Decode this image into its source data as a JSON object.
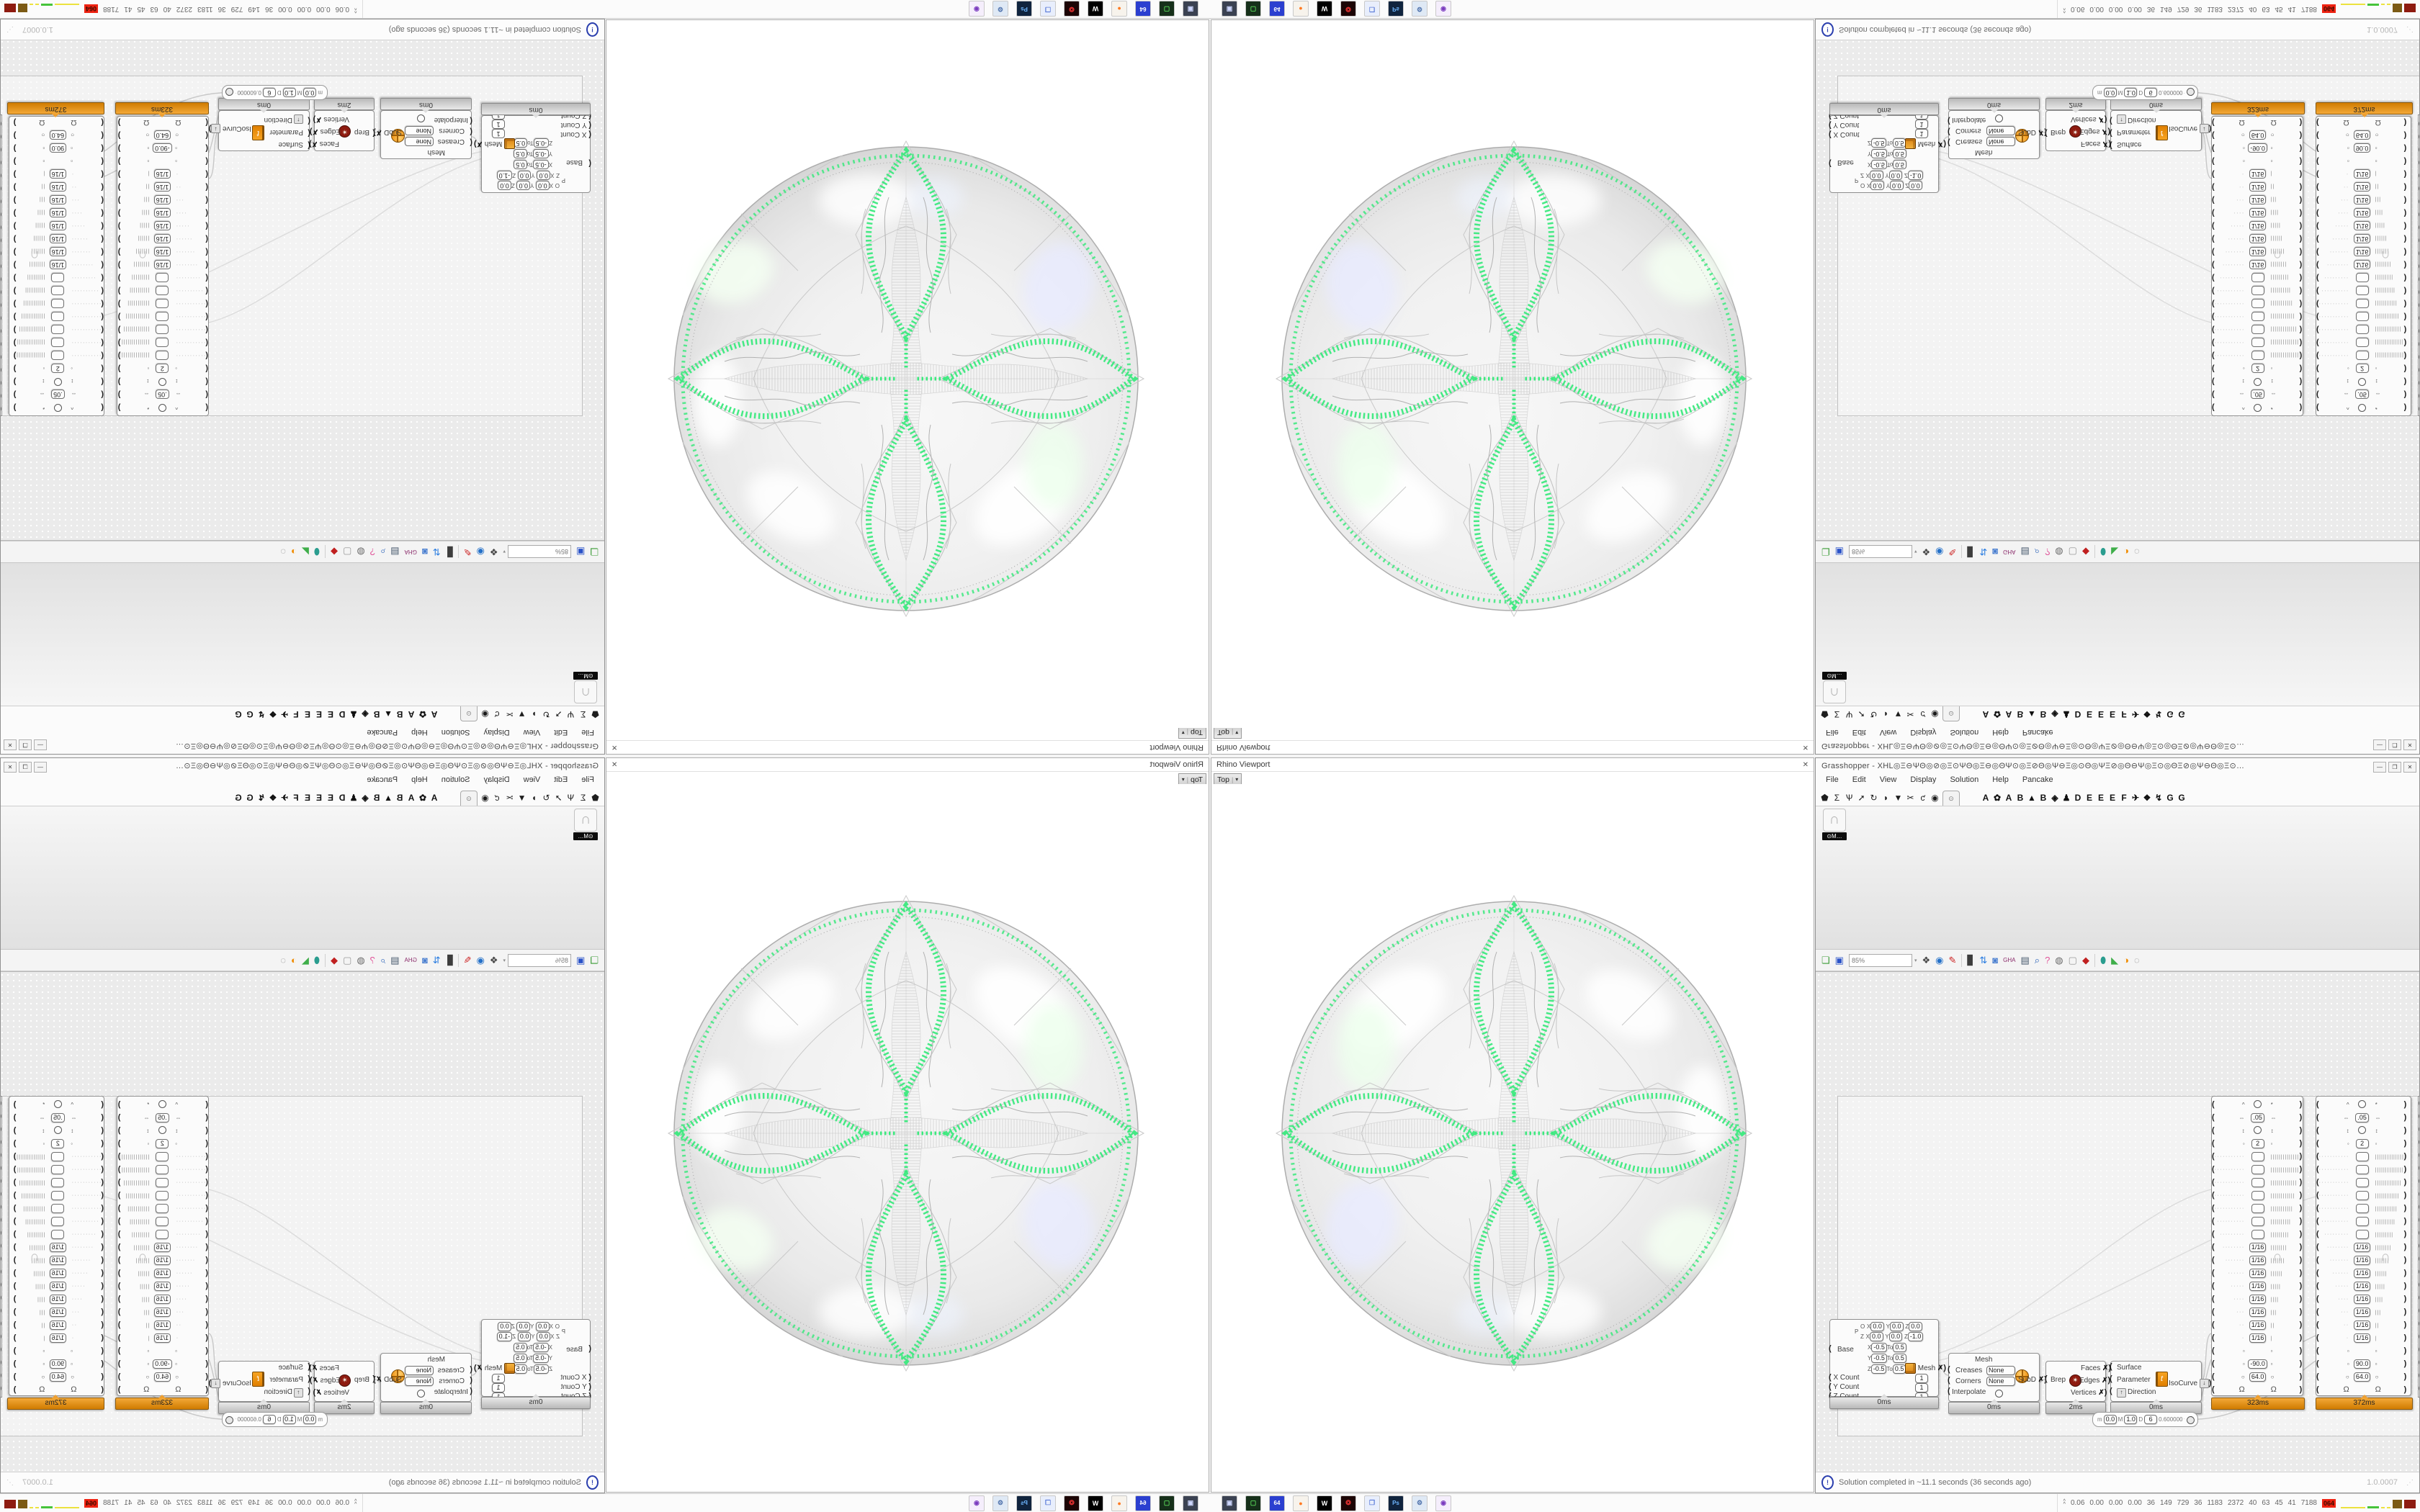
{
  "colors": {
    "green": "#3ce97e",
    "orange_bar": "#e89117",
    "canvas_bg": "#ebebeb"
  },
  "taskbar": {
    "apps": [
      {
        "name": "screenshot-tool",
        "glyph": "▣",
        "bg": "#3b4252",
        "fg": "#cfd8ff"
      },
      {
        "name": "screen-recorder",
        "glyph": "▢",
        "bg": "#16301a",
        "fg": "#58d858"
      },
      {
        "name": "floppy-64",
        "glyph": "64",
        "bg": "#2b3fd0",
        "fg": "#ffffff"
      },
      {
        "name": "firefox",
        "glyph": "●",
        "bg": "#f7f3ec",
        "fg": "#ff7a21"
      },
      {
        "name": "wolf-app",
        "glyph": "W",
        "bg": "#000000",
        "fg": "#ffffff"
      },
      {
        "name": "red-camera",
        "glyph": "❂",
        "bg": "#1c0505",
        "fg": "#e23030"
      },
      {
        "name": "file-manager",
        "glyph": "❐",
        "bg": "#e8eefc",
        "fg": "#5b7bd8"
      },
      {
        "name": "photoshop",
        "glyph": "Ps",
        "bg": "#10243e",
        "fg": "#6fb7ff"
      },
      {
        "name": "system-monitor",
        "glyph": "⚙",
        "bg": "#dfe9f5",
        "fg": "#4a6ea9"
      },
      {
        "name": "owl-app",
        "glyph": "◉",
        "bg": "#f5eefc",
        "fg": "#7a3bbf"
      }
    ],
    "tray": {
      "chevrons": [
        "^",
        "^"
      ],
      "values": [
        "0.06",
        "0.00",
        "0.00",
        "0.00",
        "36",
        "149",
        "729",
        "36",
        "1183",
        "2372",
        "40",
        "63",
        "45",
        "41",
        "7188"
      ],
      "badge": "064",
      "blocks": [
        {
          "name": "yellow-line",
          "color": "#ece23e",
          "w": 34,
          "h": 2
        },
        {
          "name": "green-line",
          "color": "#46c43a",
          "w": 16,
          "h": 3
        },
        {
          "name": "yellow-dot",
          "color": "#ece23e",
          "w": 5,
          "h": 2
        },
        {
          "name": "yellow-dot",
          "color": "#ece23e",
          "w": 5,
          "h": 2
        },
        {
          "name": "brown-block",
          "color": "#7c5a14",
          "w": 13,
          "h": 12
        },
        {
          "name": "darkred-block",
          "color": "#8e1b10",
          "w": 16,
          "h": 12
        }
      ]
    }
  },
  "rhino": {
    "window_title": "Rhino Viewport",
    "close_glyph": "✕",
    "viewport_tab": "Top",
    "tab_sep": "|",
    "tab_caret": "▾"
  },
  "grasshopper": {
    "title": "Grasshopper - XHL◎Ξ⊖ΨΘ◎⊘◎Ξ⊙ΨΘ◎Ξ⊖◎ΘΨ⊙◎Ξ⊘Θ◎Ψ⊖Ξ◎⊙Θ◎ΨΞ⊘◎Θ⊖Ψ◎Ξ⊙◎ΘΞ⊘◎Ψ⊖Θ◎Ξ⊙…",
    "window_buttons": [
      {
        "name": "minimize",
        "glyph": "—"
      },
      {
        "name": "maximize",
        "glyph": "❐"
      },
      {
        "name": "close",
        "glyph": "✕"
      }
    ],
    "menu": [
      "File",
      "Edit",
      "View",
      "Display",
      "Solution",
      "Help",
      "Pancake"
    ],
    "category_tabs": [
      {
        "name": "params",
        "glyph": "⬟"
      },
      {
        "name": "maths",
        "glyph": "Σ"
      },
      {
        "name": "sets",
        "glyph": "Ѱ"
      },
      {
        "name": "vector",
        "glyph": "➚"
      },
      {
        "name": "curve",
        "glyph": "↻"
      },
      {
        "name": "surface",
        "glyph": "◗"
      },
      {
        "name": "mesh",
        "glyph": "▼"
      },
      {
        "name": "intersect",
        "glyph": "✂"
      },
      {
        "name": "transform",
        "glyph": "ƈ"
      },
      {
        "name": "display",
        "glyph": "◉"
      }
    ],
    "selected_tab_glyph": "⊙",
    "letter_tabs": [
      "A",
      "✿",
      "A",
      "B",
      "▲",
      "B",
      "◈",
      "♟",
      "D",
      "E",
      "E",
      "E",
      "F",
      "✈",
      "❖",
      "↯",
      "G",
      "G"
    ],
    "panel_component": {
      "icon_glyph": "∩",
      "label": "⊙M…"
    },
    "toolbar": {
      "zoom_value": "85%",
      "icons": [
        {
          "name": "open-file-icon",
          "glyph": "❏",
          "color": "#3a9b35"
        },
        {
          "name": "save-file-icon",
          "glyph": "▣",
          "color": "#2a52c8"
        },
        {
          "name": "zoom-extents-icon",
          "glyph": "❖",
          "color": "#444444"
        },
        {
          "name": "preview-eye-icon",
          "glyph": "◉",
          "color": "#2470c8"
        },
        {
          "name": "sketch-pen-icon",
          "glyph": "✎",
          "color": "#cc2222"
        },
        {
          "name": "separator",
          "glyph": "",
          "color": ""
        },
        {
          "name": "camera-icon",
          "glyph": "▊",
          "color": "#3d3d3d"
        },
        {
          "name": "axes-icon",
          "glyph": "⇅",
          "color": "#2a7de1"
        },
        {
          "name": "balls-icon",
          "glyph": "◙",
          "color": "#4a7fd0"
        },
        {
          "name": "gha-loader-icon",
          "glyph": "GHA",
          "color": "#8a2a6a"
        },
        {
          "name": "doc-export-icon",
          "glyph": "▤",
          "color": "#44566a"
        },
        {
          "name": "finder-icon",
          "glyph": "⌕",
          "color": "#2a62b8"
        },
        {
          "name": "help-package-icon",
          "glyph": "?",
          "color": "#e0559a"
        },
        {
          "name": "sphere-pair-icon",
          "glyph": "◍",
          "color": "#6a6a6a"
        },
        {
          "name": "barrel-icon",
          "glyph": "▢",
          "color": "#9a9a9a"
        },
        {
          "name": "red-gem-icon",
          "glyph": "◆",
          "color": "#c02020"
        },
        {
          "name": "separator",
          "glyph": "",
          "color": ""
        },
        {
          "name": "teal-cylinder-icon",
          "glyph": "⬮",
          "color": "#2a9d8f"
        },
        {
          "name": "green-wedge-icon",
          "glyph": "◣",
          "color": "#3fae4a"
        },
        {
          "name": "half-sphere-icon",
          "glyph": "◑",
          "color": "#f08c00"
        },
        {
          "name": "dashed-circle-icon",
          "glyph": "◌",
          "color": "#888888"
        }
      ]
    },
    "status": {
      "message": "Solution completed in ~11.1 seconds (36 seconds ago)",
      "version": "1.0.0007",
      "grip": "⋰"
    },
    "components": {
      "mesh_box": {
        "profiler": "0ms",
        "plane_label": "P",
        "plane_rows": [
          {
            "k": "O",
            "xl": "X",
            "x": "0.0",
            "yl": "Y",
            "y": "0.0",
            "zl": "Z",
            "z": "0.0"
          },
          {
            "k": "Z",
            "xl": "X",
            "x": "0.0",
            "yl": "Y",
            "y": "0.0",
            "zl": "Z",
            "z": "-1.0"
          }
        ],
        "base_label": "Base",
        "to_label": "To",
        "domains": [
          {
            "axis": "X",
            "from": "-0.5",
            "to": "0.5"
          },
          {
            "axis": "Y",
            "from": "-0.5",
            "to": "0.5"
          },
          {
            "axis": "Z",
            "from": "-0.5",
            "to": "0.5"
          }
        ],
        "counts": [
          {
            "label": "X Count",
            "value": "1"
          },
          {
            "label": "Y Count",
            "value": "1"
          },
          {
            "label": "Z Count",
            "value": "1"
          }
        ],
        "output": "Mesh"
      },
      "subd": {
        "profiler": "0ms",
        "in_mesh": "Mesh",
        "in_creases": "Creases",
        "creases_value": "None",
        "in_corners": "Corners",
        "corners_value": "None",
        "in_interpolate": "Interpolate",
        "output": "SubD"
      },
      "deconstruct_brep": {
        "profiler": "2ms",
        "input": "Brep",
        "outputs": [
          "Faces",
          "Edges",
          "Vertices"
        ]
      },
      "isocurve": {
        "profiler": "0ms",
        "in_surface": "Surface",
        "in_parameter": "Parameter",
        "in_direction": "Direction",
        "icon_letter": "t",
        "output": "IsoCurve"
      },
      "slider": {
        "min_label": "m",
        "min": "0.0",
        "max_label": "M",
        "max": "1.0",
        "digits_label": "D",
        "digits": "6",
        "value": "0.600000",
        "knob_pos": 0.42
      },
      "tall": {
        "shared": {
          "row1": {
            "l": "^",
            "r": "*"
          },
          "spin_glyph": "⇔",
          "spin": ".05",
          "updown_glyph": "↕",
          "dot_glyph": "◦",
          "count": "2",
          "fraction": "1/16",
          "empty_rows": 7,
          "fraction_rows": 8,
          "max_marks": 15,
          "square_glyph": "▫",
          "radius": "64.0",
          "omega": "Ω"
        },
        "instances": [
          {
            "name": "tall-component-left",
            "profiler": "323ms",
            "angle": "-90.0"
          },
          {
            "name": "tall-component-right",
            "profiler": "372ms",
            "angle": "90.0"
          }
        ]
      }
    }
  }
}
